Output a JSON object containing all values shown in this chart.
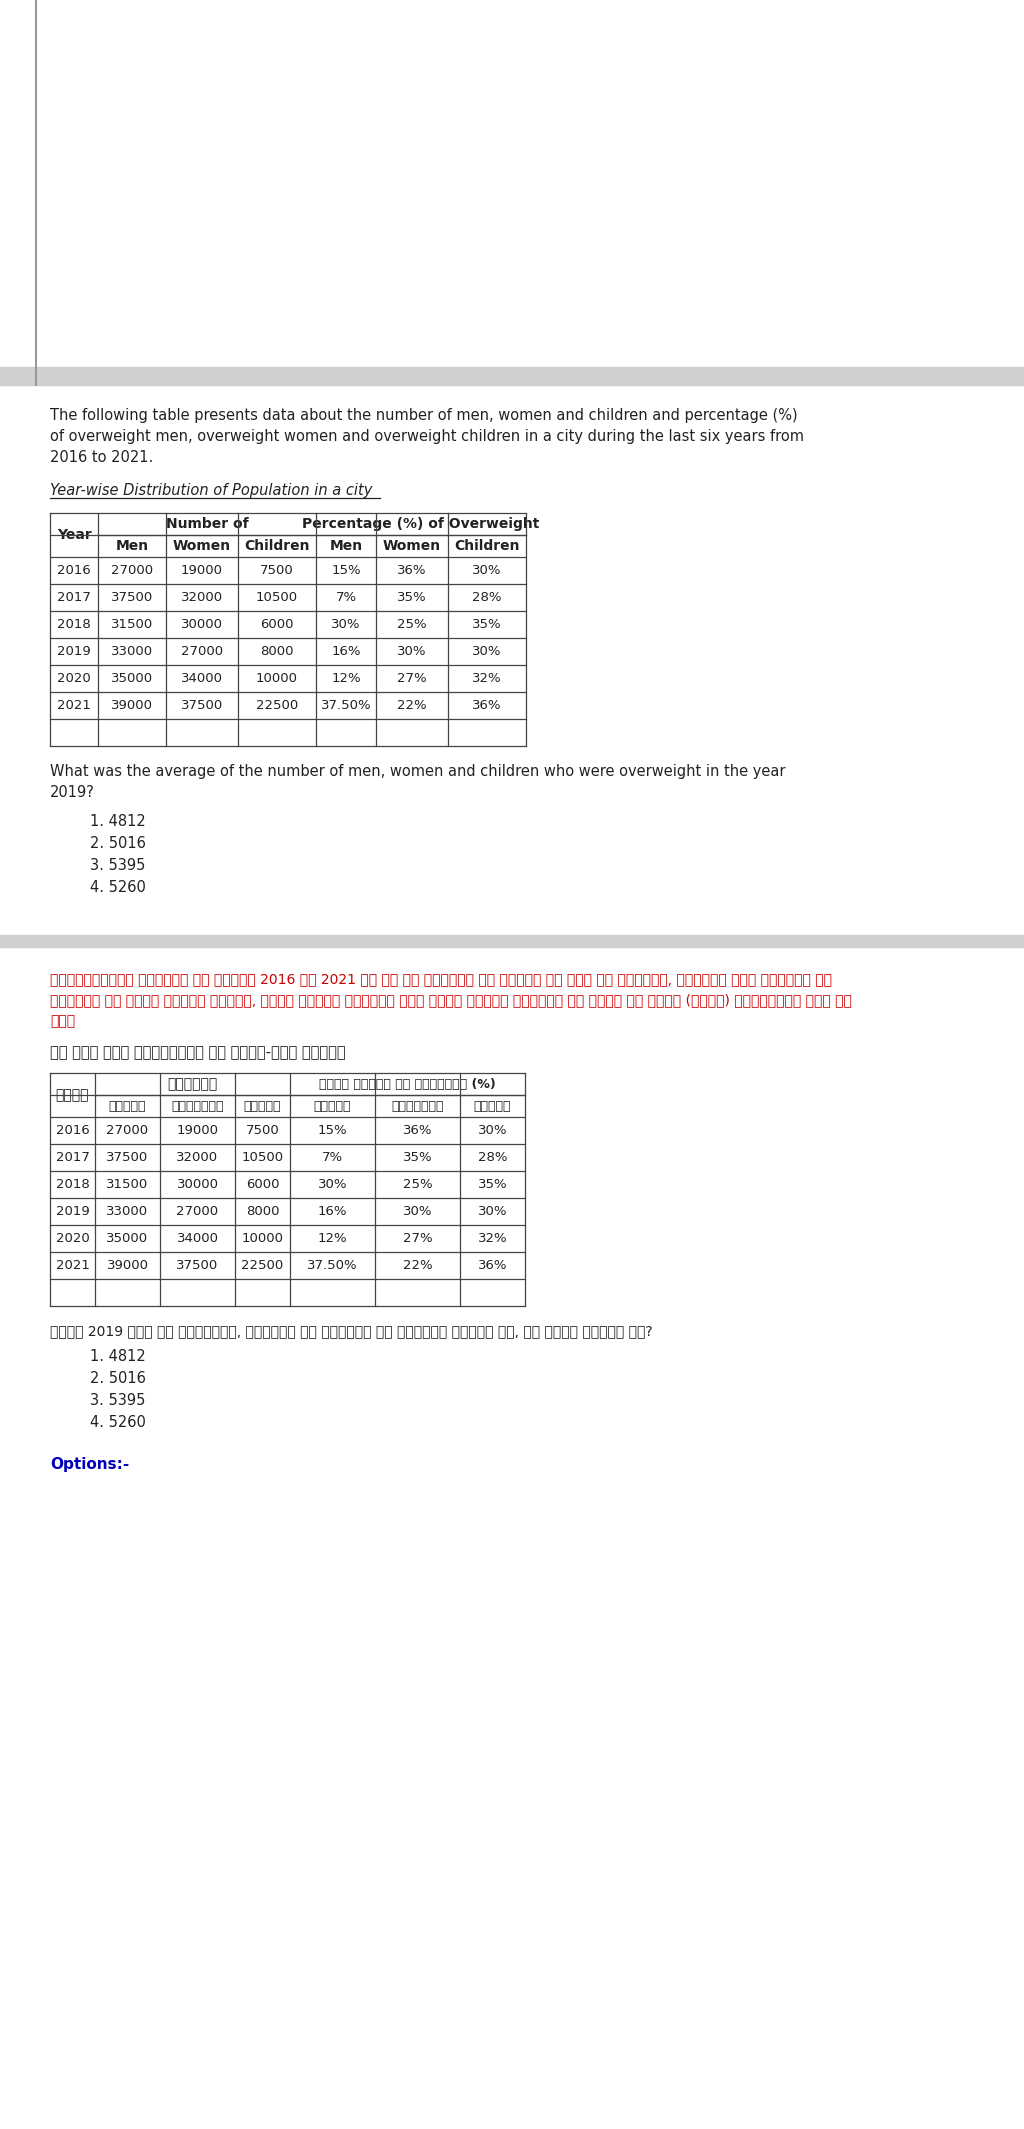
{
  "bg_color": "#ffffff",
  "intro_text_en": "The following table presents data about the number of men, women and children and percentage (%)\nof overweight men, overweight women and overweight children in a city during the last six years from\n2016 to 2021.",
  "table_title_en": "Year-wise Distribution of Population in a city",
  "group_headers_en": [
    "Number of",
    "Percentage (%) of Overweight"
  ],
  "sub_headers_en": [
    "Men",
    "Women",
    "Children",
    "Men",
    "Women",
    "Children"
  ],
  "year_header_en": "Year",
  "rows": [
    [
      "2016",
      "27000",
      "19000",
      "7500",
      "15%",
      "36%",
      "30%"
    ],
    [
      "2017",
      "37500",
      "32000",
      "10500",
      "7%",
      "35%",
      "28%"
    ],
    [
      "2018",
      "31500",
      "30000",
      "6000",
      "30%",
      "25%",
      "35%"
    ],
    [
      "2019",
      "33000",
      "27000",
      "8000",
      "16%",
      "30%",
      "30%"
    ],
    [
      "2020",
      "35000",
      "34000",
      "10000",
      "12%",
      "27%",
      "32%"
    ],
    [
      "2021",
      "39000",
      "37500",
      "22500",
      "37.50%",
      "22%",
      "36%"
    ]
  ],
  "question_en": "What was the average of the number of men, women and children who were overweight in the year\n2019?",
  "options_en": [
    "1. 4812",
    "2. 5016",
    "3. 5395",
    "4. 5260"
  ],
  "intro_text_hi_line1": "निम्नलिखित तालिका मे पिछले 2016 से 2021 तक के छह वर्षों के दौरान एक शहर मे पुरुषो, महिलाओ एवं बच्चों की",
  "intro_text_hi_line2": "संख्या और अधिक वज़नी परुषो, अधिक वज़नी महिलाओ एवं अधिक वज़नी बच्चों के बारे मे डेटा (दत्त) प्रस्तुत किए गए",
  "intro_text_hi_line3": "है।",
  "table_title_hi": "एक शहर में जनसंख्या का वर्ष-वार वितरण",
  "group_header_hi_1": "संख्या",
  "group_header_hi_2": "अधिक वज़नी का प्रतिशत (%)",
  "sub_headers_hi": [
    "पुरुष",
    "महिलाएं",
    "बच्चे",
    "पुरुष",
    "महिलाएं",
    "बच्चे"
  ],
  "year_header_hi": "वर्ष",
  "question_hi": "वर्ष 2019 में उन पुरुषों, महिलाओ और बच्चों की संख्या कितनी थी, जो अधिक वज़नी थे?",
  "options_hi": [
    "1. 4812",
    "2. 5016",
    "3. 5395",
    "4. 5260"
  ],
  "options_label": "Options:-",
  "separator_color": "#d0d0d0",
  "line_color": "#999999",
  "table_line_color": "#444444",
  "text_color": "#222222",
  "hindi_text_color": "#cc0000",
  "options_label_color": "#0000bb"
}
